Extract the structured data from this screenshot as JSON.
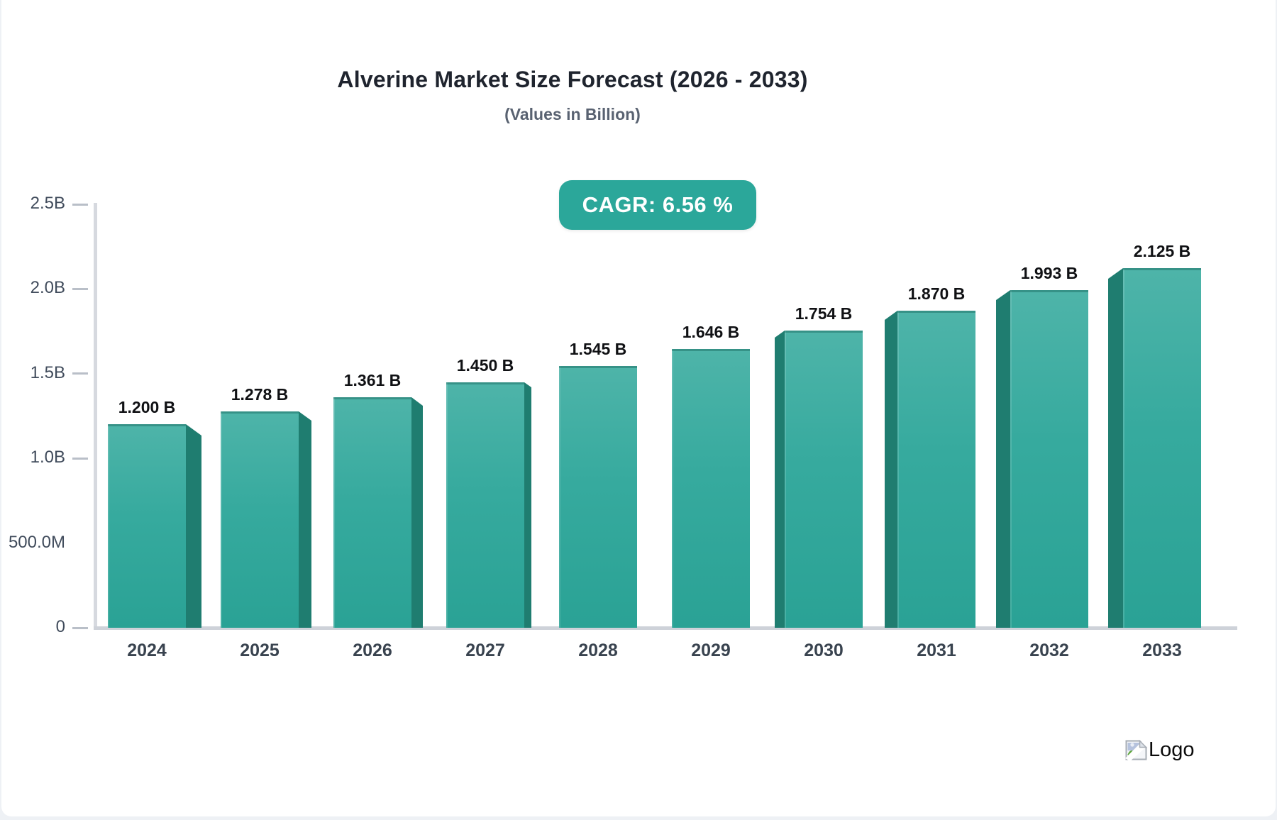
{
  "badge": {
    "label": "CAGR: 6.56 %"
  },
  "footer": {
    "logo_text": "Logo",
    "logo_icon": "broken-image-icon"
  },
  "colors": {
    "bar_top": "#4eb4a9",
    "bar_bottom": "#2aa295",
    "bar_side": "#1f7d70",
    "badge_bg": "#2ba79a",
    "axis_gray": "#d6d9df",
    "title_text": "#1f242e",
    "subtitle_text": "#596271"
  },
  "chart_data": {
    "type": "bar",
    "title": "Alverine Market Size Forecast (2026 - 2033)",
    "subtitle": "(Values in Billion)",
    "categories": [
      "2024",
      "2025",
      "2026",
      "2027",
      "2028",
      "2029",
      "2030",
      "2031",
      "2032",
      "2033"
    ],
    "values": [
      1.2,
      1.278,
      1.361,
      1.45,
      1.545,
      1.646,
      1.754,
      1.87,
      1.993,
      2.125
    ],
    "value_labels": [
      "1.200 B",
      "1.278 B",
      "1.361 B",
      "1.450 B",
      "1.545 B",
      "1.646 B",
      "1.754 B",
      "1.870 B",
      "1.993 B",
      "2.125 B"
    ],
    "unit": "Billion",
    "ylim": [
      0,
      2.5
    ],
    "y_ticks": [
      {
        "label": "2.5B",
        "value": 2.5,
        "dash": true
      },
      {
        "label": "2.0B",
        "value": 2.0,
        "dash": true
      },
      {
        "label": "1.5B",
        "value": 1.5,
        "dash": true
      },
      {
        "label": "1.0B",
        "value": 1.0,
        "dash": true
      },
      {
        "label": "500.0M",
        "value": 0.5,
        "dash": false
      },
      {
        "label": "0",
        "value": 0.0,
        "dash": true
      }
    ],
    "grid": false,
    "legend": false,
    "style": "3d-perspective-bars"
  }
}
